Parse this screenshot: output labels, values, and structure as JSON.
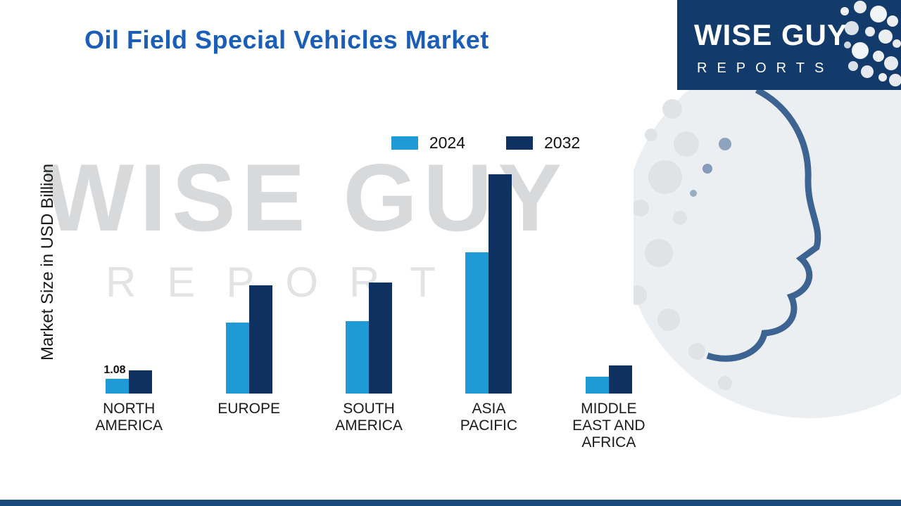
{
  "header": {
    "title": "Oil Field Special Vehicles Market"
  },
  "logo": {
    "wise_guy": "WISE GUY",
    "reports": "REPORTS"
  },
  "watermark": {
    "wise_guy": "WISE GUY",
    "reports": "REPORTS"
  },
  "colors": {
    "title": "#1a5eb8",
    "header_bg": "#123a6b",
    "footer_bg": "#1b4a7a",
    "series_2024": "#1e9ad6",
    "series_2032": "#0e3161"
  },
  "chart_data": {
    "type": "bar",
    "title": "Oil Field Special Vehicles Market",
    "ylabel": "Market Size in USD Billion",
    "unit": "USD Billion",
    "categories": [
      "NORTH AMERICA",
      "EUROPE",
      "SOUTH AMERICA",
      "ASIA PACIFIC",
      "MIDDLE EAST AND AFRICA"
    ],
    "series": [
      {
        "name": "2024",
        "color": "#1e9ad6",
        "values": [
          1.08,
          5.3,
          5.4,
          10.6,
          1.25
        ]
      },
      {
        "name": "2032",
        "color": "#0e3161",
        "values": [
          1.75,
          8.1,
          8.3,
          16.4,
          2.1
        ]
      }
    ],
    "bar_label": {
      "series": "2024",
      "category": "NORTH AMERICA",
      "text": "1.08"
    },
    "ylim": [
      0,
      18
    ],
    "grid": false,
    "legend_position": "top-center"
  }
}
